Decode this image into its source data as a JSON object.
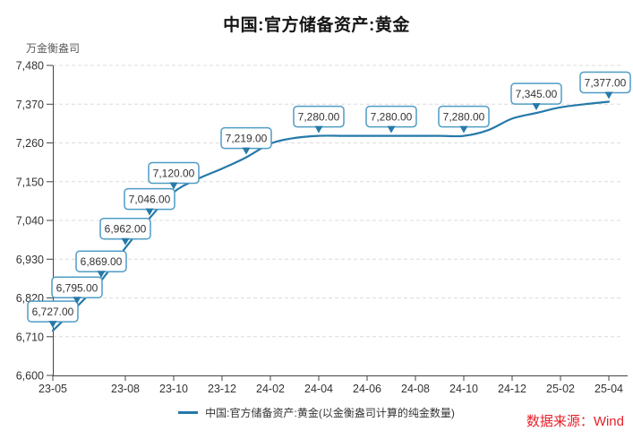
{
  "title": "中国:官方储备资产:黄金",
  "y_unit": "万金衡盎司",
  "legend": "中国:官方储备资产:黄金(以金衡盎司计算的纯金数量)",
  "source": "数据来源：Wind",
  "colors": {
    "line": "#2679a8",
    "callout_border": "#4f9cc5",
    "callout_text": "#333333",
    "axis": "#444444",
    "grid": "#dcdcdc",
    "axis_text": "#333333",
    "source_red": "#e62129"
  },
  "chart_data": {
    "type": "line",
    "title": "中国:官方储备资产:黄金",
    "ylabel": "万金衡盎司",
    "x": [
      "23-05",
      "23-06",
      "23-07",
      "23-08",
      "23-09",
      "23-10",
      "23-11",
      "23-12",
      "24-01",
      "24-02",
      "24-03",
      "24-04",
      "24-05",
      "24-06",
      "24-07",
      "24-08",
      "24-09",
      "24-10",
      "24-11",
      "24-12",
      "25-01",
      "25-02",
      "25-03",
      "25-04"
    ],
    "values": [
      6727,
      6795,
      6869,
      6962,
      7046,
      7120,
      7158,
      7187,
      7219,
      7258,
      7274,
      7280,
      7280,
      7280,
      7280,
      7280,
      7280,
      7280,
      7296,
      7329,
      7345,
      7361,
      7370,
      7377
    ],
    "x_tick_labels": [
      "23-05",
      "23-08",
      "23-10",
      "23-12",
      "24-02",
      "24-04",
      "24-06",
      "24-08",
      "24-10",
      "24-12",
      "25-02",
      "25-04"
    ],
    "y_ticks": [
      6600,
      6710,
      6820,
      6930,
      7040,
      7150,
      7260,
      7370,
      7480
    ],
    "ylim": [
      6600,
      7480
    ],
    "grid": "horizontal-dashed",
    "legend_position": "bottom",
    "data_labels": [
      {
        "x": "23-05",
        "label": "6,727.00"
      },
      {
        "x": "23-06",
        "label": "6,795.00"
      },
      {
        "x": "23-07",
        "label": "6,869.00"
      },
      {
        "x": "23-08",
        "label": "6,962.00"
      },
      {
        "x": "23-09",
        "label": "7,046.00"
      },
      {
        "x": "23-10",
        "label": "7,120.00"
      },
      {
        "x": "24-01",
        "label": "7,219.00"
      },
      {
        "x": "24-04",
        "label": "7,280.00"
      },
      {
        "x": "24-07",
        "label": "7,280.00"
      },
      {
        "x": "24-10",
        "label": "7,280.00"
      },
      {
        "x": "25-01",
        "label": "7,345.00"
      },
      {
        "x": "25-04",
        "label": "7,377.00"
      }
    ]
  }
}
